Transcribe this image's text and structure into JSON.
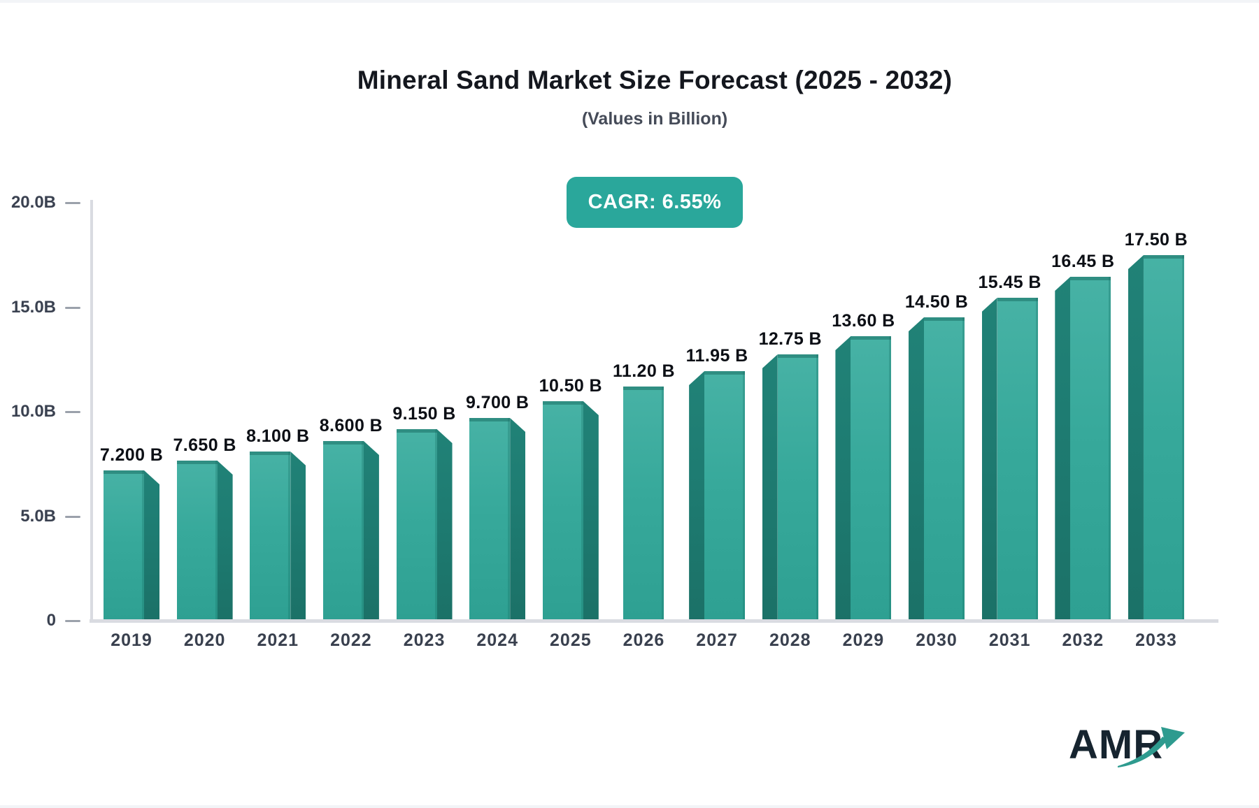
{
  "header": {
    "title": "Mineral Sand Market Size Forecast (2025 - 2032)",
    "subtitle": "(Values in Billion)",
    "cagr_badge_label": "CAGR: 6.55%"
  },
  "chart_data": {
    "type": "bar",
    "title": "Mineral Sand Market Size Forecast (2025 - 2032)",
    "subtitle": "(Values in Billion)",
    "cagr_percent": "6.55%",
    "categories": [
      "2019",
      "2020",
      "2021",
      "2022",
      "2023",
      "2024",
      "2025",
      "2026",
      "2027",
      "2028",
      "2029",
      "2030",
      "2031",
      "2032",
      "2033"
    ],
    "values": [
      7.2,
      7.65,
      8.1,
      8.6,
      9.15,
      9.7,
      10.5,
      11.2,
      11.95,
      12.75,
      13.6,
      14.5,
      15.45,
      16.45,
      17.5
    ],
    "value_labels": [
      "7.200 B",
      "7.650 B",
      "8.100 B",
      "8.600 B",
      "9.150 B",
      "9.700 B",
      "10.50 B",
      "11.20 B",
      "11.95 B",
      "12.75 B",
      "13.60 B",
      "14.50 B",
      "15.45 B",
      "16.45 B",
      "17.50 B"
    ],
    "yticks": [
      {
        "label": "20.0B",
        "value": 20
      },
      {
        "label": "15.0B",
        "value": 15
      },
      {
        "label": "10.0B",
        "value": 10
      },
      {
        "label": "5.0B",
        "value": 5
      },
      {
        "label": "0",
        "value": 0
      }
    ],
    "ylim": [
      0,
      20
    ],
    "xlabel": "",
    "ylabel": "",
    "grid": false,
    "legend": false,
    "colors": {
      "bar_front": "#37A99B",
      "bar_front_top": "#47B2A5",
      "bar_side": "#1E7C72",
      "badge_background": "#2AA79B",
      "axis_line": "#D9DBE1",
      "tick_dash": "#9BA1AB",
      "axis_text": "#3A4150",
      "value_text": "#0C0F15",
      "title_text": "#14171E",
      "logo_text": "#16242F",
      "logo_arrow": "#2E9B8F"
    }
  },
  "logo": {
    "text": "AMR"
  }
}
